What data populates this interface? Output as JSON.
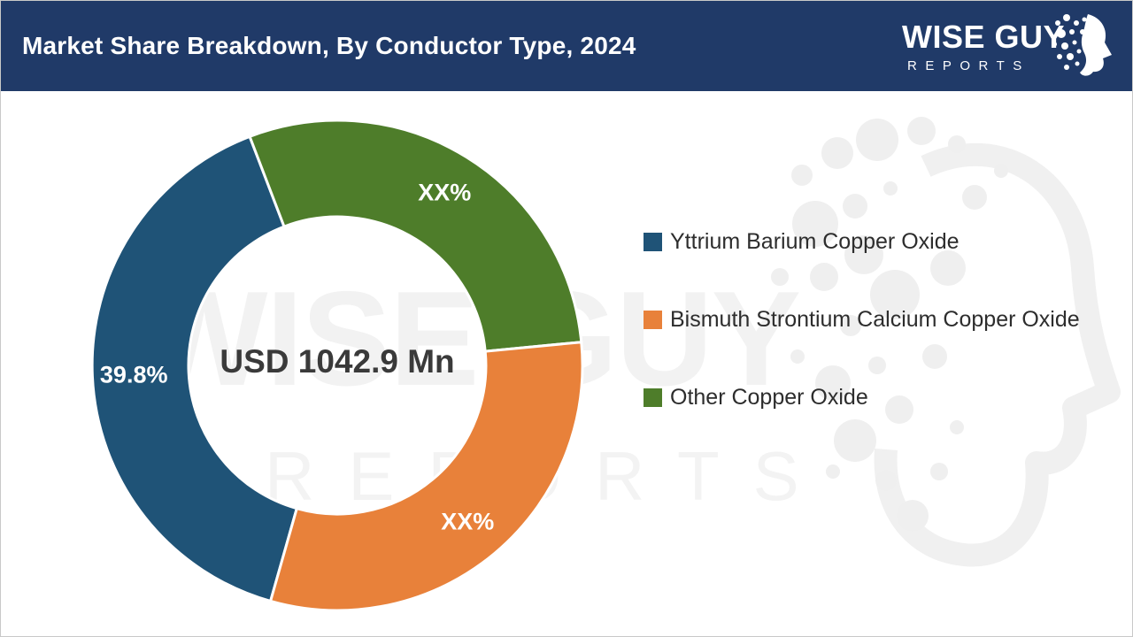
{
  "header": {
    "title": "Market Share Breakdown, By Conductor Type, 2024",
    "bg_color": "#203a68",
    "logo": {
      "name": "WISE GUY",
      "sub": "REPORTS"
    }
  },
  "chart_data": {
    "type": "pie",
    "subtype": "donut",
    "title": "Market Share Breakdown, By Conductor Type, 2024",
    "center_label": "USD 1042.9 Mn",
    "legend_position": "right",
    "start_angle_deg": 195.8,
    "segments": [
      {
        "name": "Yttrium Barium Copper Oxide",
        "value": 39.8,
        "data_label": "39.8%",
        "color": "#1f5377"
      },
      {
        "name": "Bismuth Strontium Calcium Copper Oxide",
        "value": 30.9,
        "data_label": "XX%",
        "color": "#e8813a"
      },
      {
        "name": "Other Copper Oxide",
        "value": 29.3,
        "data_label": "XX%",
        "color": "#4e7d2a"
      }
    ]
  },
  "legend": {
    "items": [
      {
        "label": "Yttrium Barium Copper Oxide",
        "color": "#1f5377"
      },
      {
        "label": "Bismuth Strontium Calcium Copper Oxide",
        "color": "#e8813a"
      },
      {
        "label": "Other Copper Oxide",
        "color": "#4e7d2a"
      }
    ]
  },
  "watermark": {
    "line1": "WISE GUY",
    "line2": "R E P O R T S"
  }
}
